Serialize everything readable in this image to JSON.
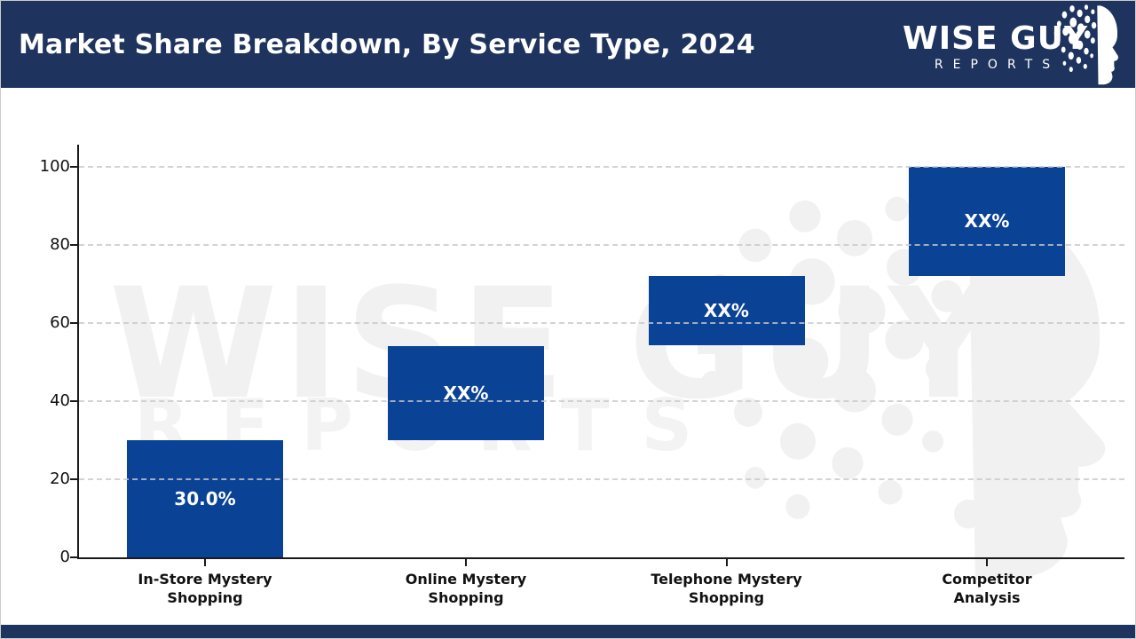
{
  "header": {
    "title": "Market Share Breakdown, By Service Type, 2024",
    "bg_color": "#1E345E",
    "logo": {
      "line1": "WISE GUY",
      "line2": "REPORTS"
    }
  },
  "watermark": {
    "line1": "WISE GUY",
    "line2": "REPORTS"
  },
  "footer": {
    "bg_color": "#1E345E"
  },
  "colors": {
    "bar_blue": "#0A4296",
    "header_navy": "#1E345E",
    "grid_gray": "#cccccc",
    "watermark_gray": "#f1f1f1"
  },
  "chart_data": {
    "type": "bar",
    "subtype": "waterfall",
    "title": "Market Share Breakdown, By Service Type, 2024",
    "categories": [
      "In-Store Mystery Shopping",
      "Online Mystery Shopping",
      "Telephone Mystery Shopping",
      "Competitor Analysis"
    ],
    "category_label_lines": [
      [
        "In-Store Mystery",
        "Shopping"
      ],
      [
        "Online Mystery",
        "Shopping"
      ],
      [
        "Telephone Mystery",
        "Shopping"
      ],
      [
        "Competitor",
        "Analysis"
      ]
    ],
    "segments": [
      {
        "start": 0,
        "end": 30,
        "label": "30.0%"
      },
      {
        "start": 30,
        "end": 54.2,
        "label": "XX%"
      },
      {
        "start": 54.3,
        "end": 72.1,
        "label": "XX%"
      },
      {
        "start": 72.1,
        "end": 100,
        "label": "XX%"
      }
    ],
    "yticks": [
      0,
      20,
      40,
      60,
      80,
      100
    ],
    "ylim": [
      0,
      105
    ],
    "xlabel": "",
    "ylabel": "",
    "grid": "horizontal-dashed",
    "legend": "none"
  }
}
